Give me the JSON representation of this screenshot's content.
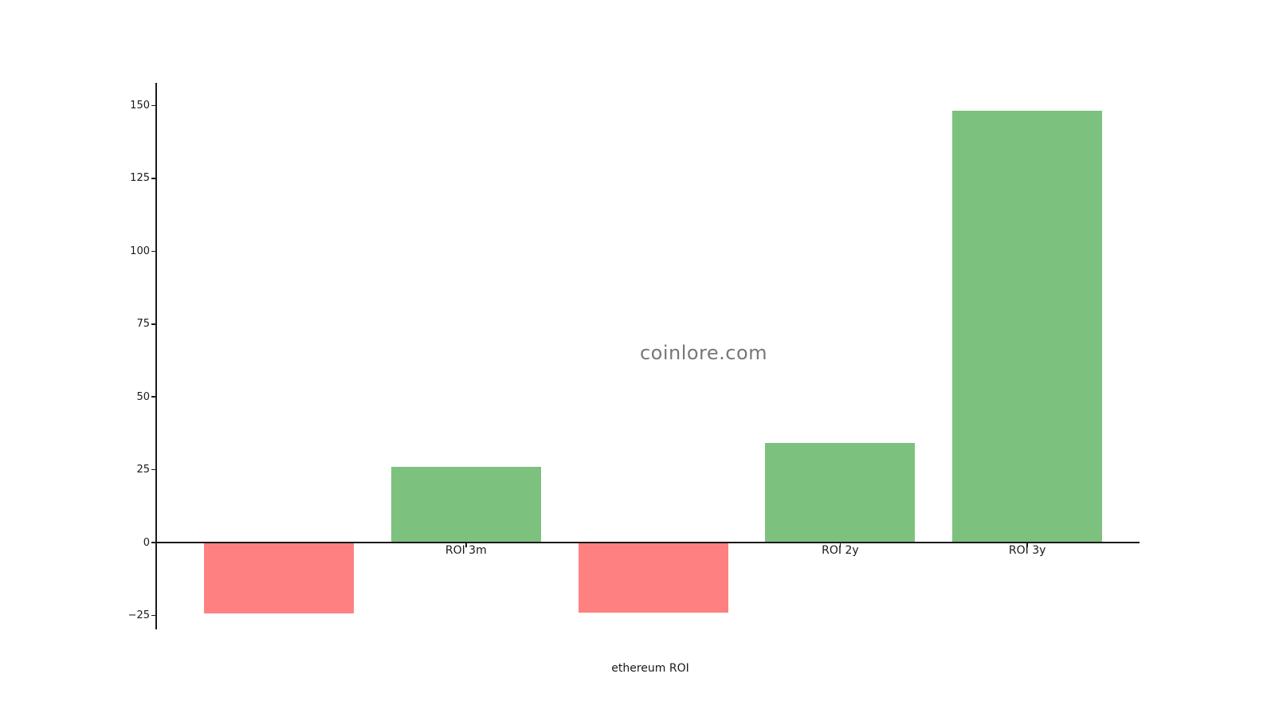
{
  "chart_data": {
    "type": "bar",
    "title": "",
    "xlabel": "ethereum ROI",
    "ylabel": "",
    "watermark": "coinlore.com",
    "categories": [
      "",
      "ROI 3m",
      "",
      "ROI 2y",
      "ROI 3y"
    ],
    "values": [
      -24.2,
      26.0,
      -23.8,
      34.2,
      148.2
    ],
    "y_ticks": [
      {
        "value": 150,
        "label": "150"
      },
      {
        "value": 125,
        "label": "125"
      },
      {
        "value": 100,
        "label": "100"
      },
      {
        "value": 75,
        "label": "75"
      },
      {
        "value": 50,
        "label": "50"
      },
      {
        "value": 25,
        "label": "25"
      },
      {
        "value": 0,
        "label": "0"
      },
      {
        "value": -25,
        "label": "−25"
      }
    ],
    "ylim": [
      -30,
      157
    ],
    "grid": false,
    "legend_position": "none",
    "colors": {
      "positive_bar": "#7cc17e",
      "negative_bar": "#ff8080",
      "axis": "#1a1a1a",
      "tick_text": "#1a1a1a",
      "watermark_text": "#777777",
      "background": "#ffffff"
    }
  }
}
